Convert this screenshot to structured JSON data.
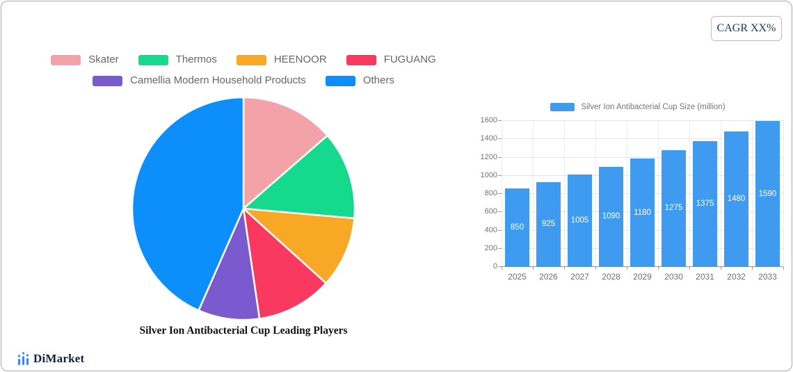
{
  "card": {
    "cagr_label": "CAGR XX%"
  },
  "logo": {
    "text": "DiMarket",
    "icon": "mini-bar-chart-icon",
    "icon_color": "#3f83f1"
  },
  "chart_data": [
    {
      "type": "pie",
      "title": "Silver Ion Antibacterial Cup Leading Players",
      "labels": [
        "Skater",
        "Thermos",
        "HEENOOR",
        "FUGUANG",
        "Camellia Modern Household Products",
        "Others"
      ],
      "values_percent": [
        13.6,
        12.8,
        10.3,
        11.0,
        8.9,
        43.4
      ],
      "colors": [
        "#f3a3a8",
        "#15d98c",
        "#f9a825",
        "#f9395f",
        "#7b59ce",
        "#0d8ffb"
      ],
      "legend_position": "top",
      "legend_rows": [
        4,
        2
      ],
      "slice_border_color": "#ffffff",
      "start_angle_deg": 0,
      "direction": "clockwise"
    },
    {
      "type": "bar",
      "series_label": "Silver Ion Antibacterial Cup Size (million)",
      "categories": [
        "2025",
        "2026",
        "2027",
        "2028",
        "2029",
        "2030",
        "2031",
        "2032",
        "2033"
      ],
      "values": [
        850,
        925,
        1005,
        1090,
        1180,
        1275,
        1375,
        1480,
        1590
      ],
      "ylim": [
        0,
        1600
      ],
      "ytick_step": 200,
      "bar_color": "#3e9bef",
      "grid": "horizontal-and-vertical",
      "value_labels": "inside-center-white",
      "legend_position": "top"
    }
  ]
}
